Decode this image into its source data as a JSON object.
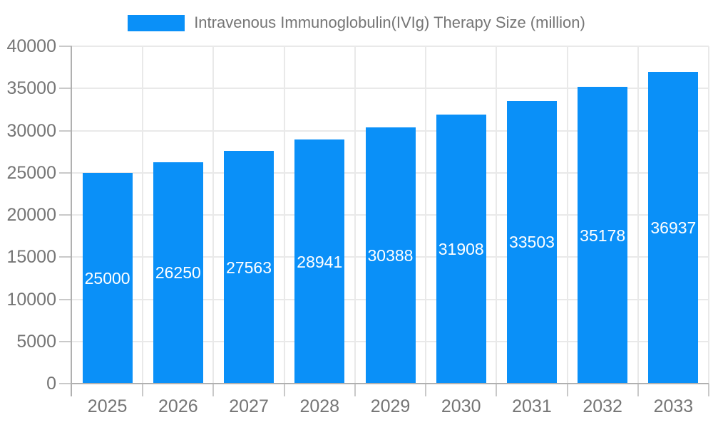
{
  "chart_data": {
    "type": "bar",
    "title": "Intravenous Immunoglobulin(IVIg) Therapy Size (million)",
    "categories": [
      "2025",
      "2026",
      "2027",
      "2028",
      "2029",
      "2030",
      "2031",
      "2032",
      "2033"
    ],
    "values": [
      25000,
      26250,
      27563,
      28941,
      30388,
      31908,
      33503,
      35178,
      36937
    ],
    "value_labels": [
      "25000",
      "26250",
      "27563",
      "28941",
      "30388",
      "31908",
      "33503",
      "35178",
      "36937"
    ],
    "xlabel": "",
    "ylabel": "",
    "ylim": [
      0,
      40000
    ],
    "ytick_step": 5000,
    "yticks": [
      0,
      5000,
      10000,
      15000,
      20000,
      25000,
      30000,
      35000,
      40000
    ],
    "grid": true,
    "legend_position": "top",
    "value_labels_position": "inside-center",
    "colors": {
      "bar": "#0a90f8",
      "value_label": "#ffffff",
      "axis_text": "#757575",
      "axis_line": "#b0b0b0",
      "tick_line": "#c9c9c9",
      "gridline": "#e9e9e9",
      "background": "#ffffff"
    }
  }
}
